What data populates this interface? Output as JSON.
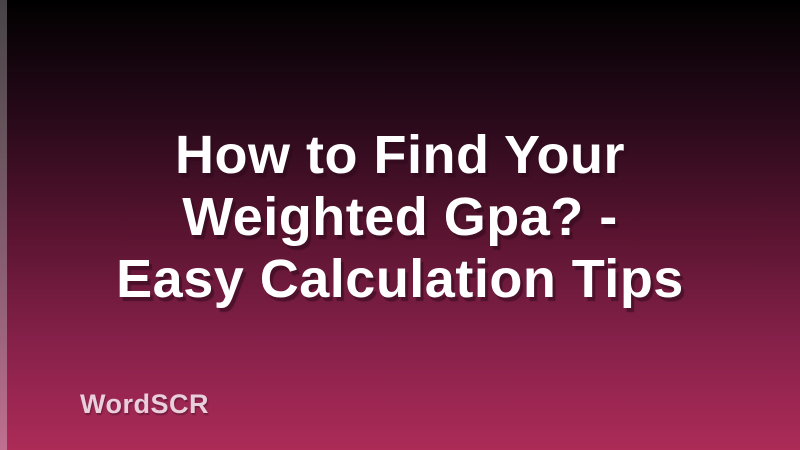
{
  "poster": {
    "background": {
      "top_color": "#000000",
      "bottom_color": "#ac2b57"
    },
    "left_strip": {
      "top_color": "#474447",
      "bottom_color": "#c06f90"
    },
    "title": {
      "full_text": "How to Find Your Weighted Gpa? - Easy Calculation Tips",
      "lines": [
        "How to Find Your",
        "Weighted Gpa? -",
        "Easy Calculation Tips"
      ],
      "text_color": "#ffffff",
      "shadow_color": "#2e0a1b"
    },
    "branding": {
      "logo_text": "WordSCR",
      "text_color": "#e9cfdb"
    }
  }
}
